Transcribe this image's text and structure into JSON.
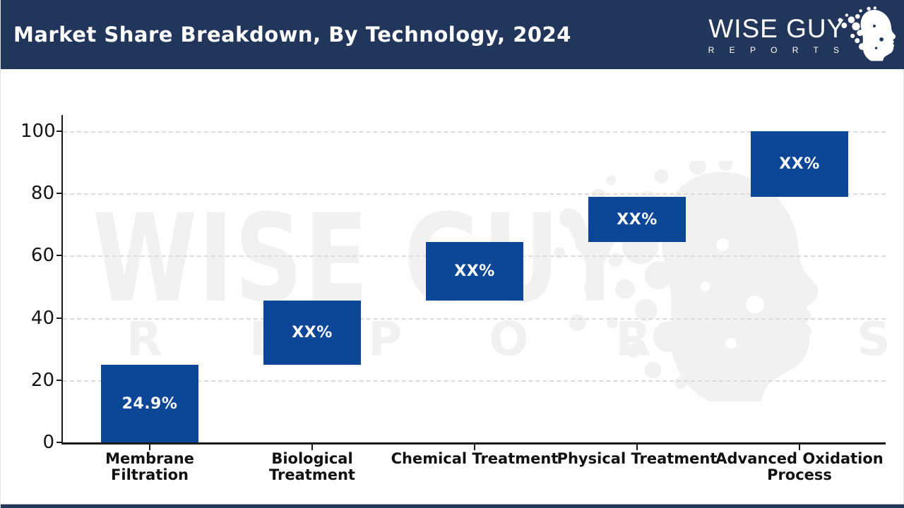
{
  "header": {
    "title": "Market Share Breakdown, By Technology, 2024",
    "logo": {
      "brand_line1": "WISE GUY",
      "brand_line2": "R E P O R T S"
    }
  },
  "watermark": {
    "line1": "WISE GUY",
    "line2": "R E P O R T S"
  },
  "colors": {
    "header_bg": "#22365C",
    "bar": "#0B4697",
    "grid": "#DCDCDC",
    "axis": "#1A1A1A",
    "watermark": "#F1F1F2",
    "bar_label": "#FFFFFF"
  },
  "chart_data": {
    "type": "bar",
    "subtype": "waterfall",
    "title": "Market Share Breakdown, By Technology, 2024",
    "categories": [
      "Membrane Filtration",
      "Biological Treatment",
      "Chemical Treatment",
      "Physical Treatment",
      "Advanced Oxidation Process"
    ],
    "category_label_lines": [
      [
        "Membrane",
        "Filtration"
      ],
      [
        "Biological",
        "Treatment"
      ],
      [
        "Chemical Treatment"
      ],
      [
        "Physical Treatment"
      ],
      [
        "Advanced Oxidation",
        "Process"
      ]
    ],
    "segments": [
      {
        "category": "Membrane Filtration",
        "start": 0,
        "end": 24.9,
        "label": "24.9%"
      },
      {
        "category": "Biological Treatment",
        "start": 24.9,
        "end": 45.6,
        "label": "XX%"
      },
      {
        "category": "Chemical Treatment",
        "start": 45.6,
        "end": 64.4,
        "label": "XX%"
      },
      {
        "category": "Physical Treatment",
        "start": 64.4,
        "end": 78.9,
        "label": "XX%"
      },
      {
        "category": "Advanced Oxidation Process",
        "start": 78.9,
        "end": 100,
        "label": "XX%"
      }
    ],
    "yticks": [
      0,
      20,
      40,
      60,
      80,
      100
    ],
    "ylim": [
      0,
      105
    ],
    "xlabel": "",
    "ylabel": "",
    "grid": "horizontal-dashed",
    "legend": "none"
  }
}
